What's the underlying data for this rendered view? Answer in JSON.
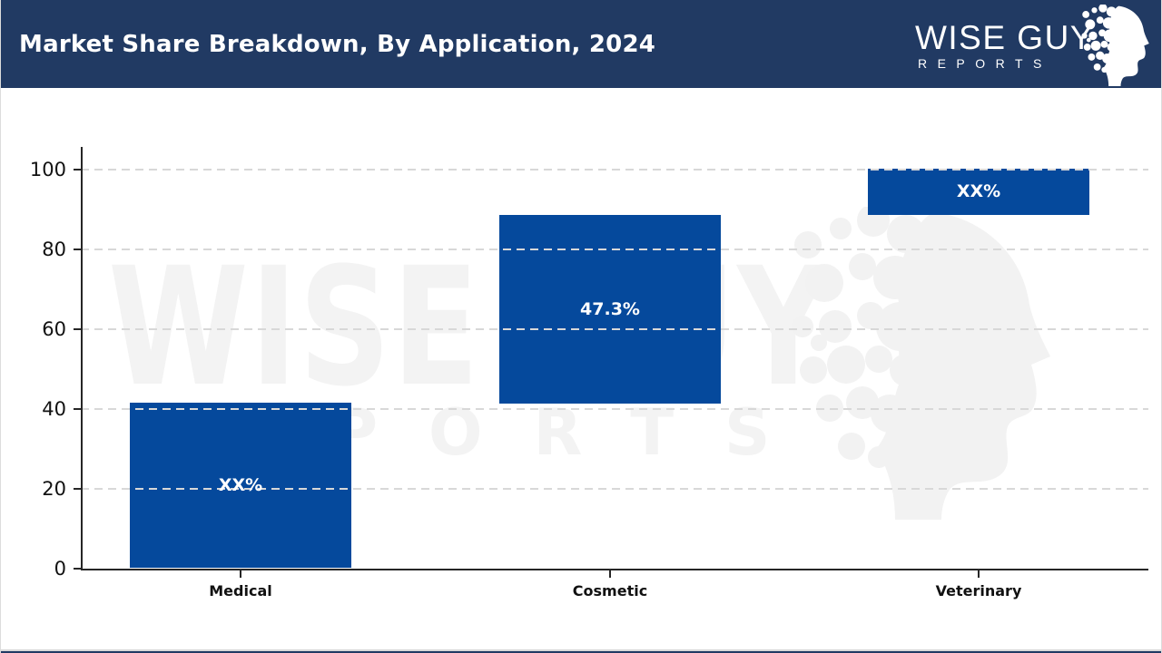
{
  "header": {
    "title": "Market Share Breakdown, By Application, 2024",
    "logo": {
      "line1": "WISE GUY",
      "line2": "REPORTS"
    }
  },
  "watermark": {
    "line1": "WISE GUY",
    "line2": "REPORTS"
  },
  "chart_data": {
    "type": "bar",
    "subtype": "percentage-waterfall (segments stack to 100%)",
    "title": "Market Share Breakdown, By Application, 2024",
    "categories": [
      "Medical",
      "Cosmetic",
      "Veterinary"
    ],
    "segments": [
      {
        "category": "Medical",
        "label": "XX%",
        "start": 0,
        "end": 41.5
      },
      {
        "category": "Cosmetic",
        "label": "47.3%",
        "start": 41.4,
        "end": 88.6
      },
      {
        "category": "Veterinary",
        "label": "XX%",
        "start": 88.7,
        "end": 100.3
      }
    ],
    "yticks": [
      0,
      20,
      40,
      60,
      80,
      100
    ],
    "ylim": [
      0,
      105.7
    ],
    "xlabel": "",
    "ylabel": "",
    "grid": "horizontal dashed",
    "legend": "none",
    "bar_color": "#05499c",
    "bar_label_color": "#ffffff",
    "grid_color": "#d8d8d8",
    "axis_color": "#262626"
  },
  "colors": {
    "header_bg": "#213a63",
    "bar": "#05499c",
    "watermark": "#f2f2f2"
  }
}
